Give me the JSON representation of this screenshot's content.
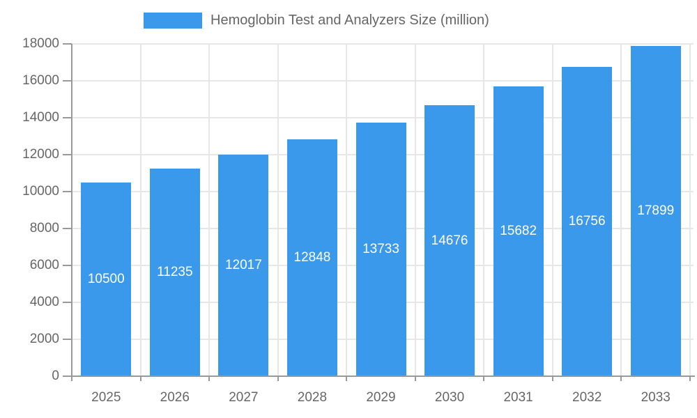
{
  "legend": {
    "label": "Hemoglobin Test and Analyzers Size (million)"
  },
  "chart_data": {
    "type": "bar",
    "title": "Hemoglobin Test and Analyzers Size (million)",
    "categories": [
      "2025",
      "2026",
      "2027",
      "2028",
      "2029",
      "2030",
      "2031",
      "2032",
      "2033"
    ],
    "values": [
      10500,
      11235,
      12017,
      12848,
      13733,
      14676,
      15682,
      16756,
      17899
    ],
    "xlabel": "",
    "ylabel": "",
    "ylim": [
      0,
      18000
    ],
    "ytick_step": 2000,
    "grid": true,
    "legend_position": "top",
    "bar_labels_inside": true,
    "colors": {
      "bar": "#3B99EC",
      "bar_label": "#ffffff",
      "axis": "#999999",
      "grid": "#e7e7e7",
      "text": "#666666"
    }
  }
}
